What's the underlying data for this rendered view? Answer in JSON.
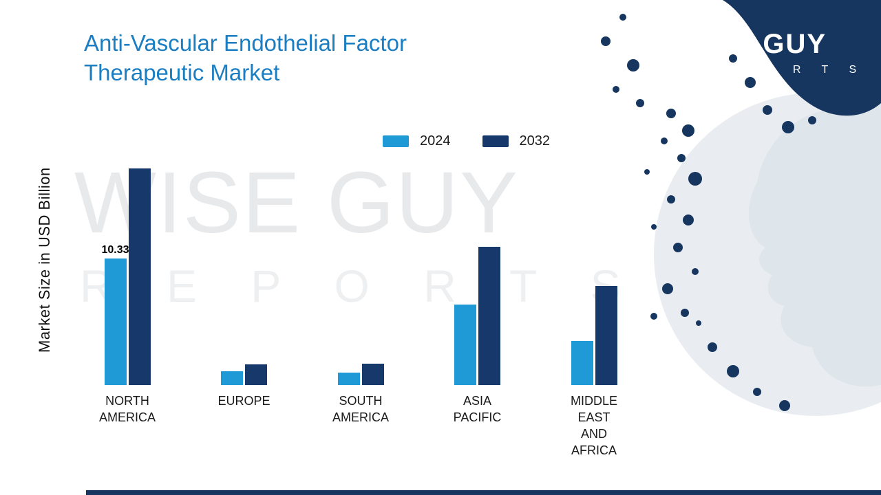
{
  "header": {
    "title_line1": "Anti-Vascular Endothelial Factor",
    "title_line2": "Therapeutic Market"
  },
  "logo": {
    "brand_top": "WISE GUY",
    "brand_bottom": "R E P O R T S"
  },
  "watermark": {
    "line1": "WISE GUY",
    "line2": "R E P O R T S"
  },
  "colors": {
    "title_blue": "#1b7ec2",
    "series_2024": "#1f9ad6",
    "series_2032": "#16386b",
    "navy_graphic": "#16365f",
    "head_circle": "#e9edf1"
  },
  "chart_data": {
    "type": "bar",
    "title": "Anti-Vascular Endothelial Factor Therapeutic Market",
    "xlabel": "",
    "ylabel": "Market Size in USD Billion",
    "categories": [
      "NORTH AMERICA",
      "EUROPE",
      "SOUTH AMERICA",
      "ASIA PACIFIC",
      "MIDDLE EAST AND AFRICA"
    ],
    "category_lines": [
      [
        "NORTH",
        "AMERICA"
      ],
      [
        "EUROPE"
      ],
      [
        "SOUTH",
        "AMERICA"
      ],
      [
        "ASIA",
        "PACIFIC"
      ],
      [
        "MIDDLE",
        "EAST",
        "AND",
        "AFRICA"
      ]
    ],
    "series": [
      {
        "name": "2024",
        "color": "#1f9ad6",
        "values": [
          10.33,
          1.1,
          1.0,
          6.6,
          3.6
        ]
      },
      {
        "name": "2032",
        "color": "#16386b",
        "values": [
          17.7,
          1.7,
          1.75,
          11.3,
          8.1
        ]
      }
    ],
    "ylim": [
      0,
      18
    ],
    "grid": false,
    "legend_position": "top",
    "annotations": [
      {
        "category_index": 0,
        "series_index": 0,
        "text": "10.33"
      }
    ]
  }
}
